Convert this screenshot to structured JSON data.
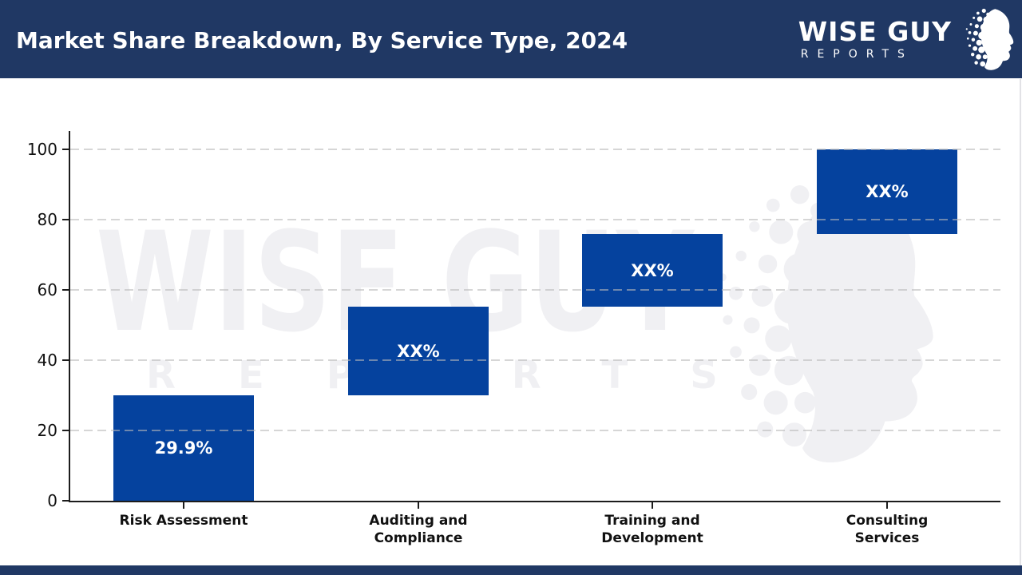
{
  "header": {
    "title": "Market Share Breakdown, By Service Type, 2024",
    "brand": {
      "wordmark": "WISE GUY",
      "subtitle": "REPORTS"
    }
  },
  "watermark": {
    "line1": "WISE GUY",
    "line2": "REPORTS"
  },
  "chart_data": {
    "type": "bar",
    "variant": "floating-waterfall",
    "title": "Market Share Breakdown, By Service Type, 2024",
    "categories": [
      "Risk Assessment",
      "Auditing and Compliance",
      "Training and Development",
      "Consulting Services"
    ],
    "category_lines": [
      [
        "Risk Assessment"
      ],
      [
        "Auditing and",
        "Compliance"
      ],
      [
        "Training and",
        "Development"
      ],
      [
        "Consulting",
        "Services"
      ]
    ],
    "segments": [
      {
        "start": 0,
        "end": 29.9,
        "label": "29.9%"
      },
      {
        "start": 29.9,
        "end": 55.2,
        "label": "XX%"
      },
      {
        "start": 55.2,
        "end": 75.9,
        "label": "XX%"
      },
      {
        "start": 75.9,
        "end": 100,
        "label": "XX%"
      }
    ],
    "yticks": [
      0,
      20,
      40,
      60,
      80,
      100
    ],
    "ylim": [
      0,
      100
    ],
    "xlabel": "",
    "ylabel": "",
    "grid": true,
    "legend": false,
    "bar_color": "#05429e",
    "value_label_color": "#ffffff"
  },
  "colors": {
    "header_bg": "#203864",
    "footer_bg": "#203864",
    "bar": "#05429e",
    "watermark": "#f0f0f3",
    "gridline": "#d9d9d9",
    "axis": "#1c1c1c"
  }
}
